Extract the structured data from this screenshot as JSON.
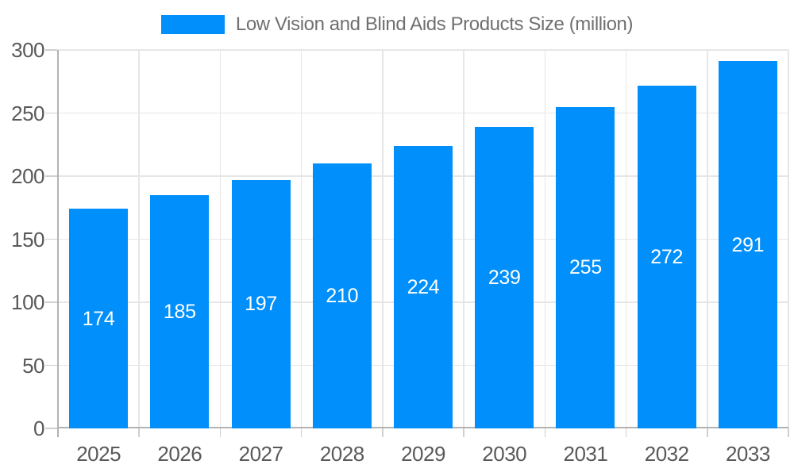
{
  "chart_data": {
    "type": "bar",
    "legend": {
      "label": "Low Vision and Blind Aids Products Size (million)",
      "position": "top-center"
    },
    "categories": [
      "2025",
      "2026",
      "2027",
      "2028",
      "2029",
      "2030",
      "2031",
      "2032",
      "2033"
    ],
    "values": [
      174,
      185,
      197,
      210,
      224,
      239,
      255,
      272,
      291
    ],
    "yticks": [
      0,
      50,
      100,
      150,
      200,
      250,
      300
    ],
    "ylim": [
      0,
      300
    ],
    "grid": true,
    "colors": {
      "bar": "#008FFB",
      "grid": "#e6e6e6",
      "axis": "#b3b3b3",
      "tick": "#cfcfcf",
      "tick_label": "#595959",
      "legend_text": "#707070",
      "bar_label": "#ffffff",
      "background": "#ffffff"
    }
  }
}
